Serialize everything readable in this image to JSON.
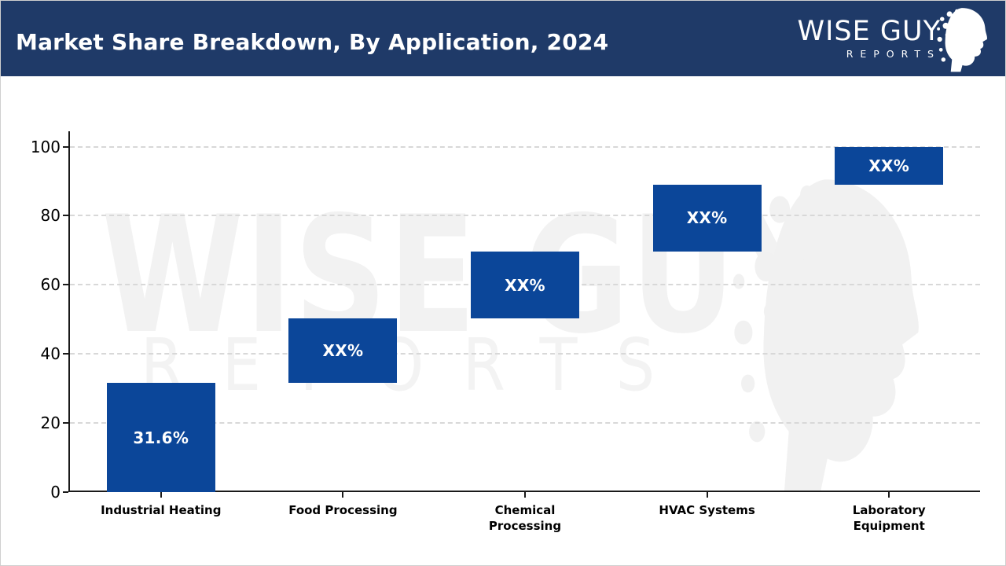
{
  "header": {
    "title": "Market Share Breakdown, By Application, 2024",
    "logo": {
      "line1": "WISE GUY",
      "line2": "REPORTS",
      "face_icon": "dotted-head-profile"
    }
  },
  "watermark": {
    "line1": "WISE GUY",
    "line2": "REPORTS",
    "face_icon": "dotted-head-profile"
  },
  "colors": {
    "header_bg": "#1f3a68",
    "bar_fill": "#0b4699",
    "gridline": "#d8d8d8",
    "axis": "#1a1a1a",
    "watermark": "#f2f2f2"
  },
  "chart_data": {
    "type": "bar",
    "subtype": "waterfall-floating-bars",
    "title": "Market Share Breakdown, By Application, 2024",
    "xlabel": "",
    "ylabel": "",
    "ylim": [
      0,
      104
    ],
    "yticks": [
      0,
      20,
      40,
      60,
      80,
      100
    ],
    "grid": "horizontal-dashed",
    "legend": "none",
    "categories": [
      "Industrial Heating",
      "Food Processing",
      "Chemical\nProcessing",
      "HVAC Systems",
      "Laboratory\nEquipment"
    ],
    "bars": [
      {
        "category": "Industrial Heating",
        "start": 0,
        "end": 31.6,
        "label": "31.6%"
      },
      {
        "category": "Food Processing",
        "start": 31.6,
        "end": 50.2,
        "label": "XX%"
      },
      {
        "category": "Chemical Processing",
        "start": 50.2,
        "end": 69.7,
        "label": "XX%"
      },
      {
        "category": "HVAC Systems",
        "start": 69.7,
        "end": 89.0,
        "label": "XX%"
      },
      {
        "category": "Laboratory Equipment",
        "start": 89.0,
        "end": 100.0,
        "label": "XX%"
      }
    ]
  }
}
